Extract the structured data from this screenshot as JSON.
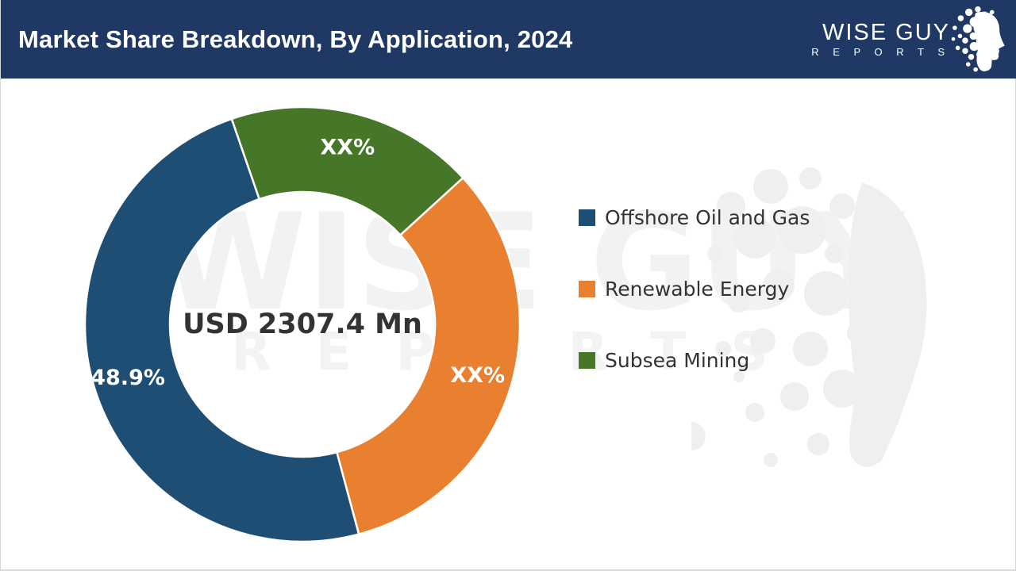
{
  "header": {
    "title": "Market Share Breakdown, By Application, 2024",
    "logo": {
      "name": "WISE GUY",
      "sub": "R E P O R T S"
    }
  },
  "chart_data": {
    "type": "donut",
    "title": "Market Share Breakdown, By Application, 2024",
    "center_label": "USD 2307.4 Mn",
    "rotation_deg": -19,
    "direction": "clockwise, last-to-first from top",
    "legend_position": "right",
    "segments": [
      {
        "name": "Offshore Oil and Gas",
        "label": "48.9%",
        "value": 48.9,
        "color": "#1f4e74"
      },
      {
        "name": "Renewable Energy",
        "label": "XX%",
        "value": 32.6,
        "color": "#e8802f"
      },
      {
        "name": "Subsea Mining",
        "label": "XX%",
        "value": 18.5,
        "color": "#467628"
      }
    ]
  },
  "watermark": {
    "line1": "WISE GUY",
    "line2": "REPORTS"
  }
}
